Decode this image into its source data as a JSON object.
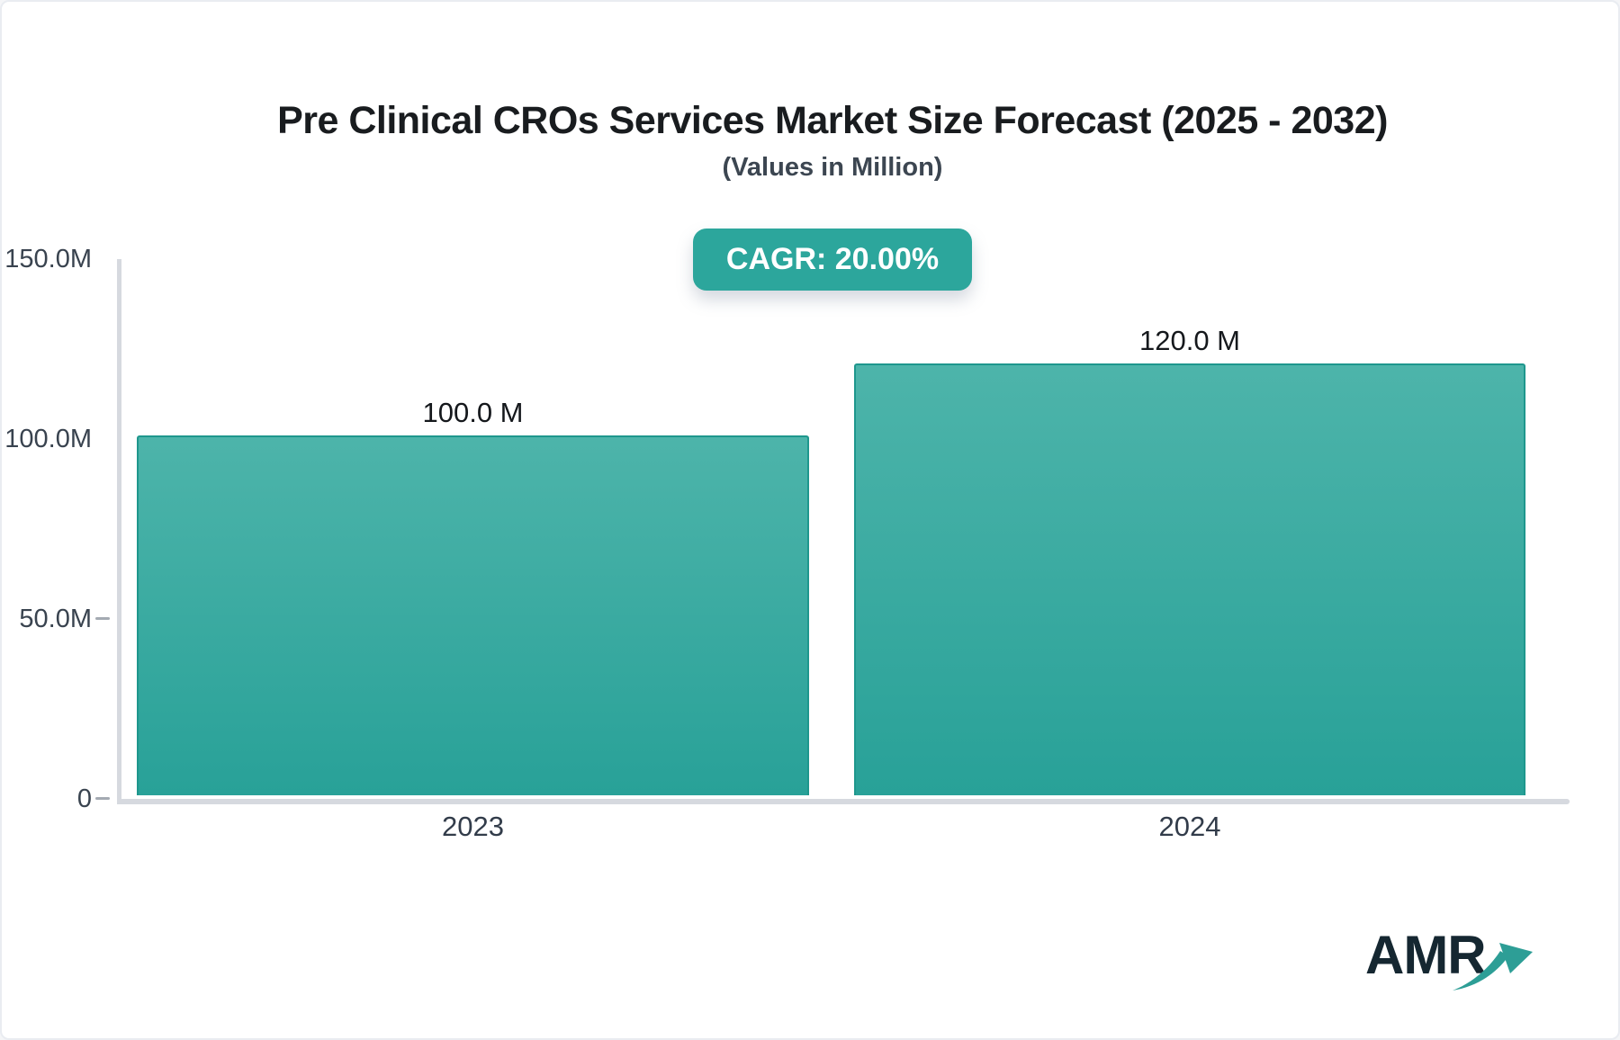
{
  "page": {
    "background": "#ffffff",
    "card_border_color": "#e9ecf1"
  },
  "header": {
    "title": "Pre Clinical CROs Services Market Size Forecast (2025 - 2032)",
    "subtitle": "(Values in Million)"
  },
  "badge": {
    "label": "CAGR: 20.00%",
    "background": "#2ca69c",
    "text_color": "#ffffff",
    "cagr_percent": "20.00%"
  },
  "branding": {
    "logo_text": "AMR",
    "logo_text_color": "#152731",
    "arrow_color": "#2d9e96"
  },
  "chart_data": {
    "type": "bar",
    "title": "Pre Clinical CROs Services Market Size Forecast (2025 - 2032)",
    "subtitle": "(Values in Million)",
    "unit": "Million (M)",
    "cagr_label": "CAGR: 20.00%",
    "categories": [
      "2023",
      "2024"
    ],
    "values": [
      100.0,
      120.0
    ],
    "bar_labels": [
      "100.0 M",
      "120.0 M"
    ],
    "ylim": [
      0,
      150
    ],
    "yticks": [
      {
        "value": 150,
        "label": "150.0M",
        "dash": false
      },
      {
        "value": 100,
        "label": "100.0M",
        "dash": false
      },
      {
        "value": 50,
        "label": "50.0M",
        "dash": true
      },
      {
        "value": 0,
        "label": "0",
        "dash": true
      }
    ],
    "grid": false,
    "legend": false,
    "bar_color_top": "#4db4aa",
    "bar_color_bottom": "#28a198",
    "bar_border_color": "#1e978d",
    "axis_color": "#d6d9df"
  }
}
